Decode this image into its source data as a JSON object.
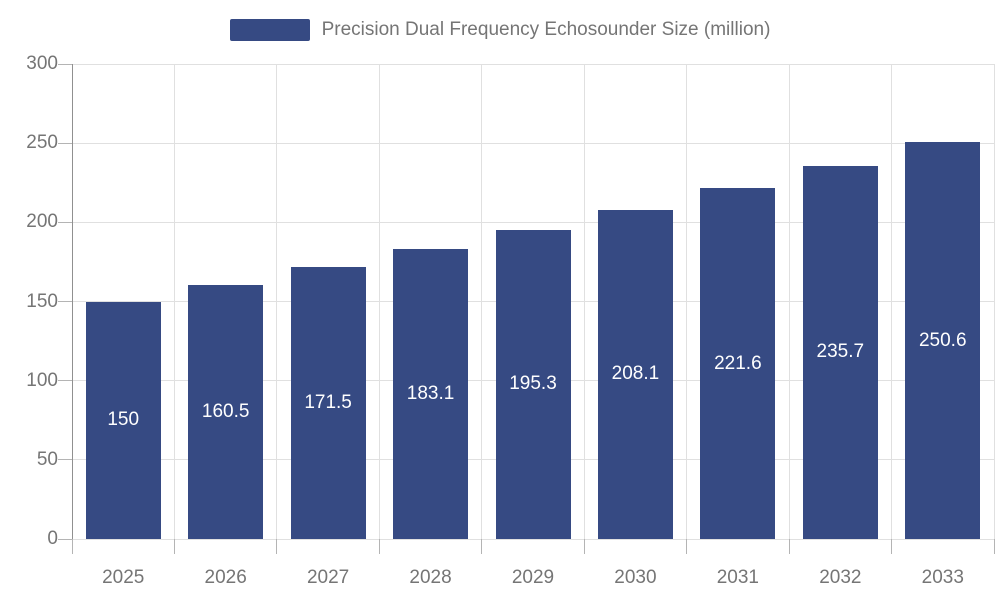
{
  "chart_data": {
    "type": "bar",
    "title": "Precision Dual Frequency Echosounder Size (million)",
    "categories": [
      "2025",
      "2026",
      "2027",
      "2028",
      "2029",
      "2030",
      "2031",
      "2032",
      "2033"
    ],
    "values": [
      150,
      160.5,
      171.5,
      183.1,
      195.3,
      208.1,
      221.6,
      235.7,
      250.6
    ],
    "value_labels": [
      "150",
      "160.5",
      "171.5",
      "183.1",
      "195.3",
      "208.1",
      "221.6",
      "235.7",
      "250.6"
    ],
    "xlabel": "",
    "ylabel": "",
    "ylim": [
      0,
      300
    ],
    "y_ticks": [
      0,
      50,
      100,
      150,
      200,
      250,
      300
    ],
    "grid": true,
    "legend_position": "top-center",
    "legend_entries": [
      "Precision Dual Frequency Echosounder Size (million)"
    ],
    "colors": {
      "bar": "#364a83",
      "text": "#757575",
      "grid": "#e0e0e0",
      "axis": "#909090",
      "tick": "#b4b4b4",
      "value_label": "#ffffff",
      "background": "#ffffff"
    }
  }
}
